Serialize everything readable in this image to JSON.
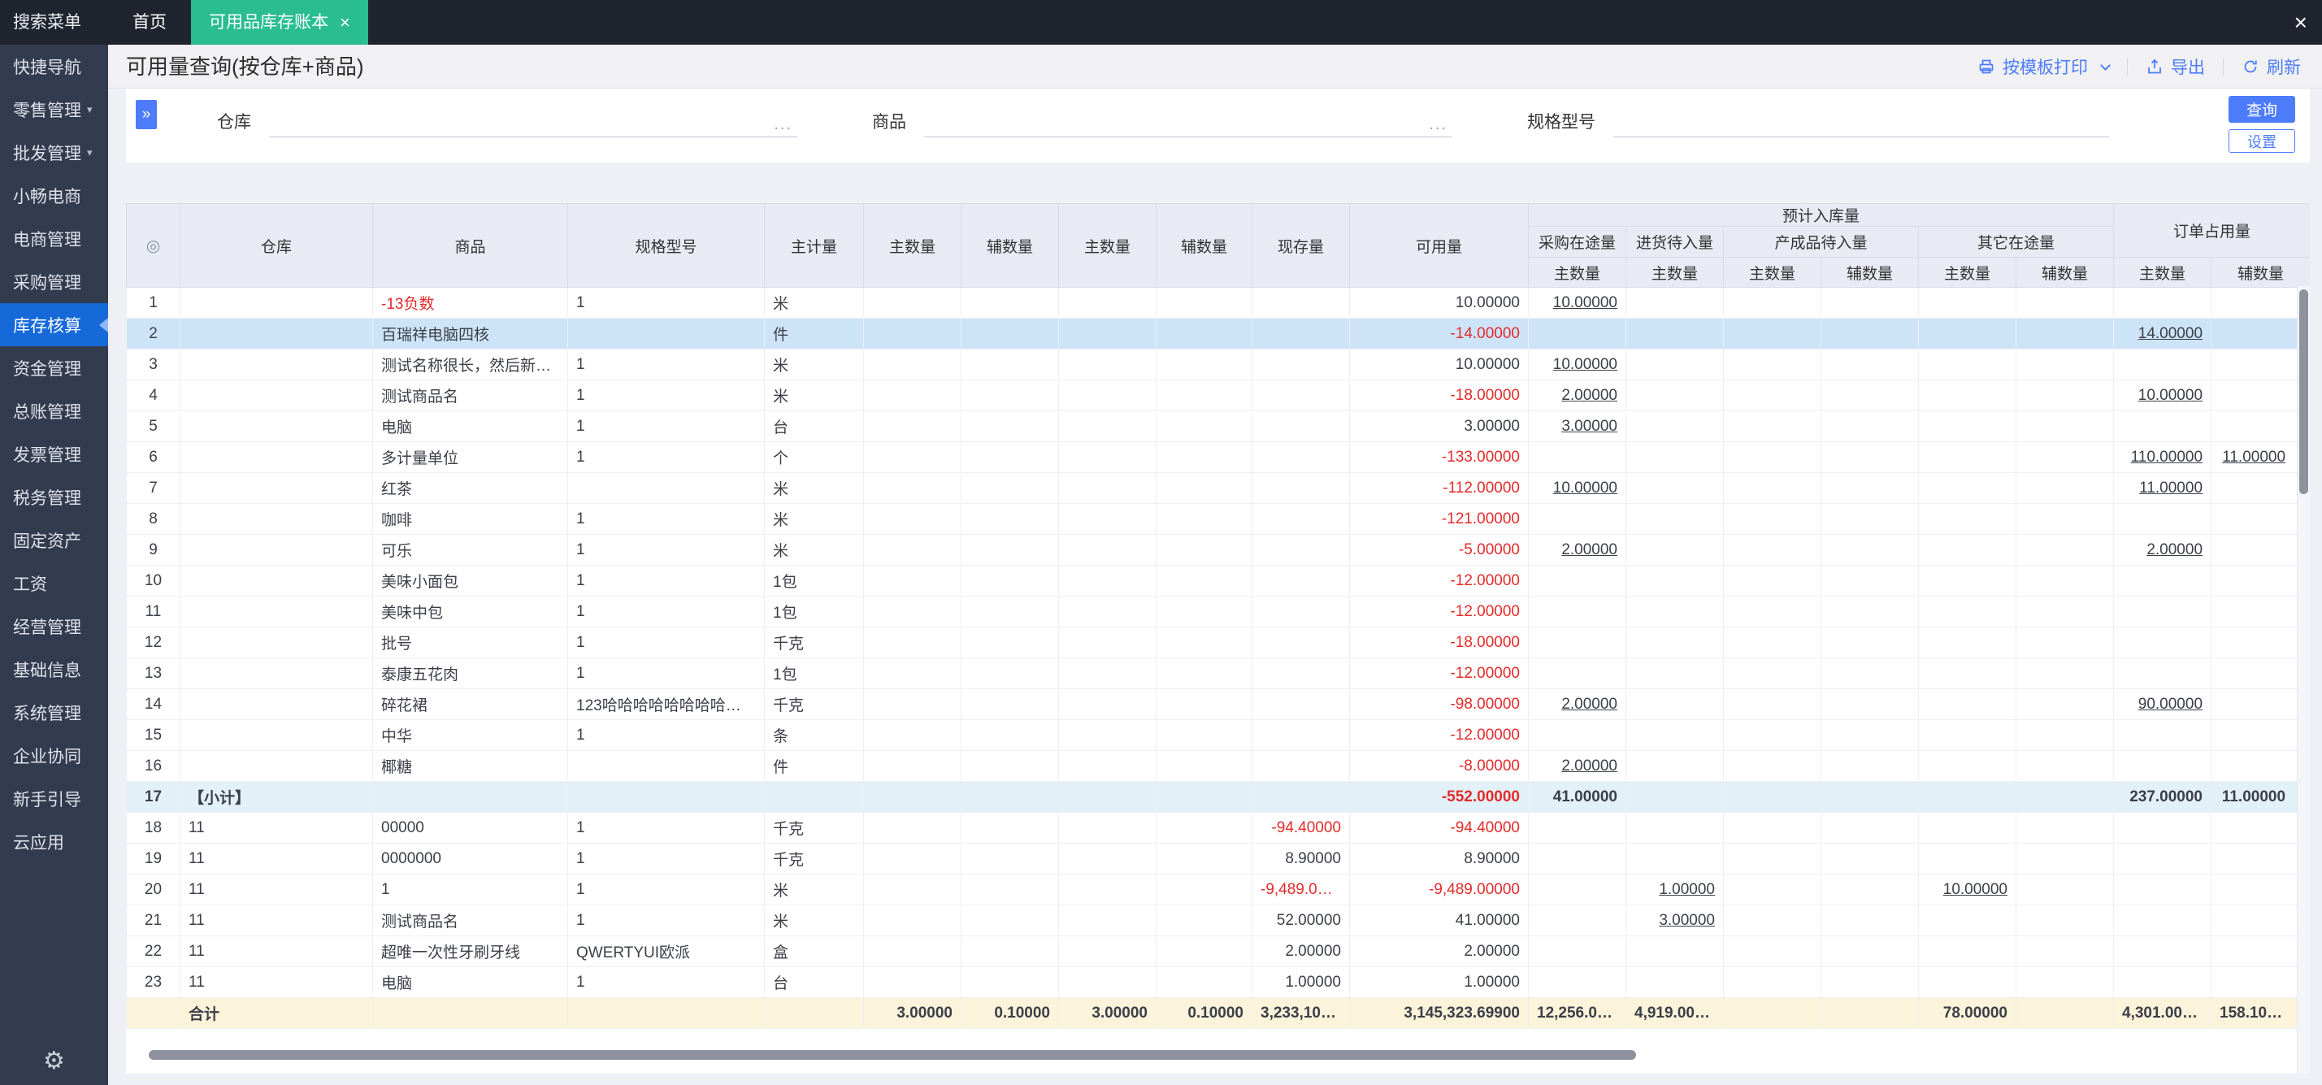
{
  "sidebar": {
    "search_label": "搜索菜单",
    "gear_icon": "⚙",
    "items": [
      {
        "label": "快捷导航"
      },
      {
        "label": "零售管理",
        "arrow": true
      },
      {
        "label": "批发管理",
        "arrow": true
      },
      {
        "label": "小畅电商"
      },
      {
        "label": "电商管理"
      },
      {
        "label": "采购管理"
      },
      {
        "label": "库存核算",
        "active": true
      },
      {
        "label": "资金管理"
      },
      {
        "label": "总账管理"
      },
      {
        "label": "发票管理"
      },
      {
        "label": "税务管理"
      },
      {
        "label": "固定资产"
      },
      {
        "label": "工资"
      },
      {
        "label": "经营管理"
      },
      {
        "label": "基础信息"
      },
      {
        "label": "系统管理"
      },
      {
        "label": "企业协同"
      },
      {
        "label": "新手引导"
      },
      {
        "label": "云应用"
      }
    ]
  },
  "tabs": {
    "home": "首页",
    "active_label": "可用品库存账本",
    "close": "×",
    "window_close": "×"
  },
  "page": {
    "title": "可用量查询(按仓库+商品)",
    "print_label": "按模板打印",
    "export_label": "导出",
    "refresh_label": "刷新"
  },
  "filters": {
    "collapse": "»",
    "fields": [
      {
        "label": "仓库",
        "value": "",
        "ellipsis": "..."
      },
      {
        "label": "商品",
        "value": "",
        "ellipsis": "..."
      },
      {
        "label": "规格型号",
        "value": ""
      }
    ],
    "query": "查询",
    "settings": "设置"
  },
  "table": {
    "header": {
      "settings_icon": "◎",
      "warehouse": "仓库",
      "product": "商品",
      "spec": "规格型号",
      "main_unit": "主计量",
      "main_qty": "主数量",
      "aux_qty": "辅数量",
      "stock": "现存量",
      "available": "可用量",
      "expected_in_group": "预计入库量",
      "purchase_transit": "采购在途量",
      "incoming_pending": "进货待入量",
      "finished_pending": "产成品待入量",
      "other_transit": "其它在途量",
      "order_occupied": "订单占用量"
    },
    "col_align": [
      "c",
      "l",
      "l",
      "l",
      "l",
      "r",
      "r",
      "r",
      "r",
      "r",
      "r",
      "r",
      "r",
      "r",
      "r",
      "r",
      "r",
      "r",
      "r"
    ],
    "rows": [
      {
        "cells": [
          "1",
          "",
          "-13负数",
          "1",
          "米",
          "",
          "",
          "",
          "",
          "",
          "10.00000",
          "10.00000",
          "",
          "",
          "",
          "",
          "",
          "",
          ""
        ],
        "marks": {
          "2": "red",
          "11": "link"
        }
      },
      {
        "cells": [
          "2",
          "",
          "百瑞祥电脑四核",
          "",
          "件",
          "",
          "",
          "",
          "",
          "",
          "-14.00000",
          "",
          "",
          "",
          "",
          "",
          "",
          "14.00000",
          ""
        ],
        "marks": {
          "10": "red",
          "17": "link"
        },
        "cls": "selected"
      },
      {
        "cells": [
          "3",
          "",
          "测试名称很长，然后新建有没...",
          "1",
          "米",
          "",
          "",
          "",
          "",
          "",
          "10.00000",
          "10.00000",
          "",
          "",
          "",
          "",
          "",
          "",
          ""
        ],
        "marks": {
          "11": "link"
        }
      },
      {
        "cells": [
          "4",
          "",
          "测试商品名",
          "1",
          "米",
          "",
          "",
          "",
          "",
          "",
          "-18.00000",
          "2.00000",
          "",
          "",
          "",
          "",
          "",
          "10.00000",
          ""
        ],
        "marks": {
          "10": "red",
          "11": "link",
          "17": "link"
        }
      },
      {
        "cells": [
          "5",
          "",
          "电脑",
          "1",
          "台",
          "",
          "",
          "",
          "",
          "",
          "3.00000",
          "3.00000",
          "",
          "",
          "",
          "",
          "",
          "",
          ""
        ],
        "marks": {
          "11": "link"
        }
      },
      {
        "cells": [
          "6",
          "",
          "多计量单位",
          "1",
          "个",
          "",
          "",
          "",
          "",
          "",
          "-133.00000",
          "",
          "",
          "",
          "",
          "",
          "",
          "110.00000",
          "11.00000"
        ],
        "marks": {
          "10": "red",
          "17": "link",
          "18": "link"
        }
      },
      {
        "cells": [
          "7",
          "",
          "红茶",
          "",
          "米",
          "",
          "",
          "",
          "",
          "",
          "-112.00000",
          "10.00000",
          "",
          "",
          "",
          "",
          "",
          "11.00000",
          ""
        ],
        "marks": {
          "10": "red",
          "11": "link",
          "17": "link"
        }
      },
      {
        "cells": [
          "8",
          "",
          "咖啡",
          "1",
          "米",
          "",
          "",
          "",
          "",
          "",
          "-121.00000",
          "",
          "",
          "",
          "",
          "",
          "",
          "",
          ""
        ],
        "marks": {
          "10": "red"
        }
      },
      {
        "cells": [
          "9",
          "",
          "可乐",
          "1",
          "米",
          "",
          "",
          "",
          "",
          "",
          "-5.00000",
          "2.00000",
          "",
          "",
          "",
          "",
          "",
          "2.00000",
          ""
        ],
        "marks": {
          "10": "red",
          "11": "link",
          "17": "link"
        }
      },
      {
        "cells": [
          "10",
          "",
          "美味小面包",
          "1",
          "1包",
          "",
          "",
          "",
          "",
          "",
          "-12.00000",
          "",
          "",
          "",
          "",
          "",
          "",
          "",
          ""
        ],
        "marks": {
          "10": "red"
        }
      },
      {
        "cells": [
          "11",
          "",
          "美味中包",
          "1",
          "1包",
          "",
          "",
          "",
          "",
          "",
          "-12.00000",
          "",
          "",
          "",
          "",
          "",
          "",
          "",
          ""
        ],
        "marks": {
          "10": "red"
        }
      },
      {
        "cells": [
          "12",
          "",
          "批号",
          "1",
          "千克",
          "",
          "",
          "",
          "",
          "",
          "-18.00000",
          "",
          "",
          "",
          "",
          "",
          "",
          "",
          ""
        ],
        "marks": {
          "10": "red"
        }
      },
      {
        "cells": [
          "13",
          "",
          "泰康五花肉",
          "1",
          "1包",
          "",
          "",
          "",
          "",
          "",
          "-12.00000",
          "",
          "",
          "",
          "",
          "",
          "",
          "",
          ""
        ],
        "marks": {
          "10": "red"
        }
      },
      {
        "cells": [
          "14",
          "",
          "碎花裙",
          "123哈哈哈哈哈哈哈哈哈哈哈...",
          "千克",
          "",
          "",
          "",
          "",
          "",
          "-98.00000",
          "2.00000",
          "",
          "",
          "",
          "",
          "",
          "90.00000",
          ""
        ],
        "marks": {
          "10": "red",
          "11": "link",
          "17": "link"
        }
      },
      {
        "cells": [
          "15",
          "",
          "中华",
          "1",
          "条",
          "",
          "",
          "",
          "",
          "",
          "-12.00000",
          "",
          "",
          "",
          "",
          "",
          "",
          "",
          ""
        ],
        "marks": {
          "10": "red"
        }
      },
      {
        "cells": [
          "16",
          "",
          "椰糖",
          "",
          "件",
          "",
          "",
          "",
          "",
          "",
          "-8.00000",
          "2.00000",
          "",
          "",
          "",
          "",
          "",
          "",
          ""
        ],
        "marks": {
          "10": "red",
          "11": "link"
        }
      },
      {
        "cells": [
          "17",
          "【小计】",
          "",
          "",
          "",
          "",
          "",
          "",
          "",
          "",
          "-552.00000",
          "41.00000",
          "",
          "",
          "",
          "",
          "",
          "237.00000",
          "11.00000"
        ],
        "marks": {
          "10": "red"
        },
        "cls": "subtotal"
      },
      {
        "cells": [
          "18",
          "11",
          "00000",
          "1",
          "千克",
          "",
          "",
          "",
          "",
          "-94.40000",
          "-94.40000",
          "",
          "",
          "",
          "",
          "",
          "",
          "",
          ""
        ],
        "marks": {
          "9": "red",
          "10": "red"
        }
      },
      {
        "cells": [
          "19",
          "11",
          "0000000",
          "1",
          "千克",
          "",
          "",
          "",
          "",
          "8.90000",
          "8.90000",
          "",
          "",
          "",
          "",
          "",
          "",
          "",
          ""
        ],
        "marks": {}
      },
      {
        "cells": [
          "20",
          "11",
          "1",
          "1",
          "米",
          "",
          "",
          "",
          "",
          "-9,489.000...",
          "-9,489.00000",
          "",
          "1.00000",
          "",
          "",
          "10.00000",
          "",
          "",
          ""
        ],
        "marks": {
          "9": "red",
          "10": "red",
          "12": "link",
          "15": "link"
        }
      },
      {
        "cells": [
          "21",
          "11",
          "测试商品名",
          "1",
          "米",
          "",
          "",
          "",
          "",
          "52.00000",
          "41.00000",
          "",
          "3.00000",
          "",
          "",
          "",
          "",
          "",
          ""
        ],
        "marks": {
          "12": "link"
        }
      },
      {
        "cells": [
          "22",
          "11",
          "超唯一次性牙刷牙线",
          "QWERTYUI欧派",
          "盒",
          "",
          "",
          "",
          "",
          "2.00000",
          "2.00000",
          "",
          "",
          "",
          "",
          "",
          "",
          "",
          ""
        ],
        "marks": {}
      },
      {
        "cells": [
          "23",
          "11",
          "电脑",
          "1",
          "台",
          "",
          "",
          "",
          "",
          "1.00000",
          "1.00000",
          "",
          "",
          "",
          "",
          "",
          "",
          "",
          ""
        ],
        "marks": {}
      },
      {
        "cells": [
          "",
          "合计",
          "",
          "",
          "",
          "3.00000",
          "0.10000",
          "3.00000",
          "0.10000",
          "3,233,105...",
          "3,145,323.69900",
          "12,256.00...",
          "4,919.00000",
          "",
          "",
          "78.00000",
          "",
          "4,301.00000",
          "158.10000"
        ],
        "marks": {},
        "cls": "total"
      }
    ]
  },
  "colors": {
    "accent_blue": "#4d7cfa",
    "active_menu_blue": "#1569d9",
    "tab_green": "#2abd8e",
    "negative_red": "#e52b2b",
    "selected_row": "#cde4f8",
    "subtotal_row": "#e2f1f7",
    "total_row": "#fbf3da",
    "header_bg": "#e9ebf4",
    "sidebar_bg": "#333b4f"
  }
}
